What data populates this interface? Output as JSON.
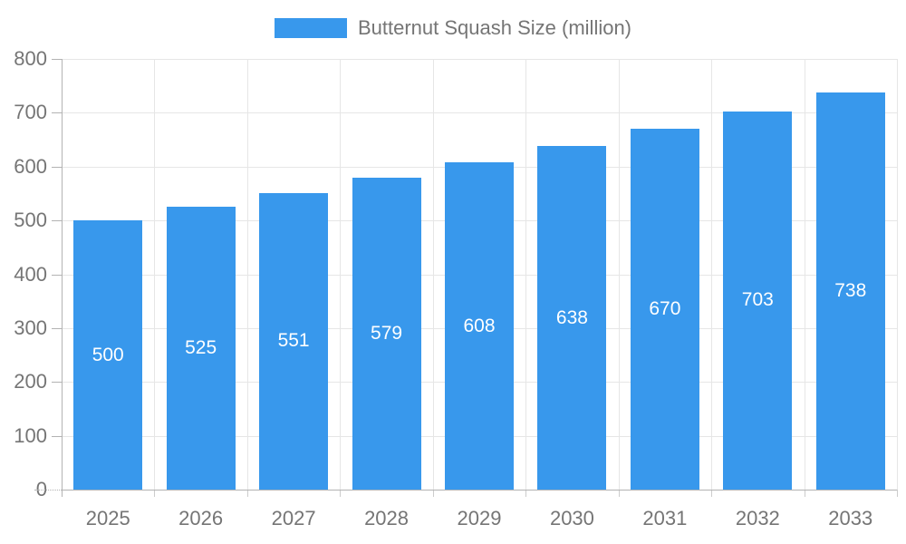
{
  "chart_data": {
    "type": "bar",
    "title": "Butternut Squash Size (million)",
    "legend_position": "top",
    "categories": [
      "2025",
      "2026",
      "2027",
      "2028",
      "2029",
      "2030",
      "2031",
      "2032",
      "2033"
    ],
    "values": [
      500,
      525,
      551,
      579,
      608,
      638,
      670,
      703,
      738
    ],
    "value_labels": [
      "500",
      "525",
      "551",
      "579",
      "608",
      "638",
      "670",
      "703",
      "738"
    ],
    "xlabel": "",
    "ylabel": "",
    "ylim": [
      0,
      800
    ],
    "yticks": [
      0,
      100,
      200,
      300,
      400,
      500,
      600,
      700,
      800
    ],
    "grid": "on",
    "colors": {
      "bar": "#3898ec",
      "bar_value_text": "#ffffff",
      "axis_text": "#757575",
      "axis_line": "#b3b3b3",
      "gridline": "#e6e6e6",
      "minor_tick": "#cccccc",
      "background": "#ffffff"
    }
  }
}
